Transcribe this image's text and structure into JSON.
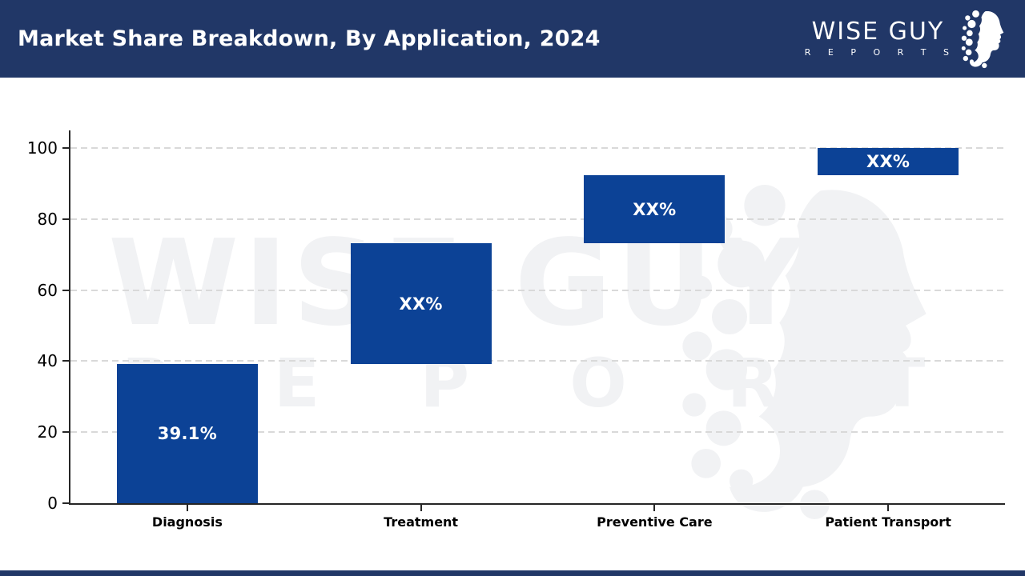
{
  "header": {
    "title": "Market Share Breakdown, By Application, 2024",
    "logo": {
      "line1": "WISE GUY",
      "line2": "R E P O R T S"
    }
  },
  "watermark": {
    "line1": "WISE GUY",
    "line2": "R E P O R T S"
  },
  "chart_data": {
    "type": "bar",
    "subtype": "waterfall",
    "title": "Market Share Breakdown, By Application, 2024",
    "categories": [
      "Diagnosis",
      "Treatment",
      "Preventive Care",
      "Patient Transport"
    ],
    "segments": [
      {
        "category": "Diagnosis",
        "start": 0,
        "end": 39.1,
        "value": 39.1,
        "label": "39.1%"
      },
      {
        "category": "Treatment",
        "start": 39.1,
        "end": 73.2,
        "value": 34.1,
        "label": "XX%"
      },
      {
        "category": "Preventive Care",
        "start": 73.2,
        "end": 92.3,
        "value": 19.1,
        "label": "XX%"
      },
      {
        "category": "Patient Transport",
        "start": 92.3,
        "end": 100,
        "value": 7.7,
        "label": "XX%"
      }
    ],
    "y_ticks": [
      0,
      20,
      40,
      60,
      80,
      100
    ],
    "y_tick_labels": [
      "0",
      "20",
      "40",
      "60",
      "80",
      "100"
    ],
    "ylim": [
      0,
      105
    ],
    "grid": "horizontal-dashed",
    "legend": "none",
    "xlabel": "",
    "ylabel": ""
  },
  "colors": {
    "header_bg": "#213767",
    "footer_bg": "#213767",
    "bar": "#0c4296",
    "bar_label": "#ffffff",
    "grid": "#d9d9d9",
    "axis": "#262626",
    "watermark": "#f1f2f4",
    "title_text": "#ffffff"
  }
}
